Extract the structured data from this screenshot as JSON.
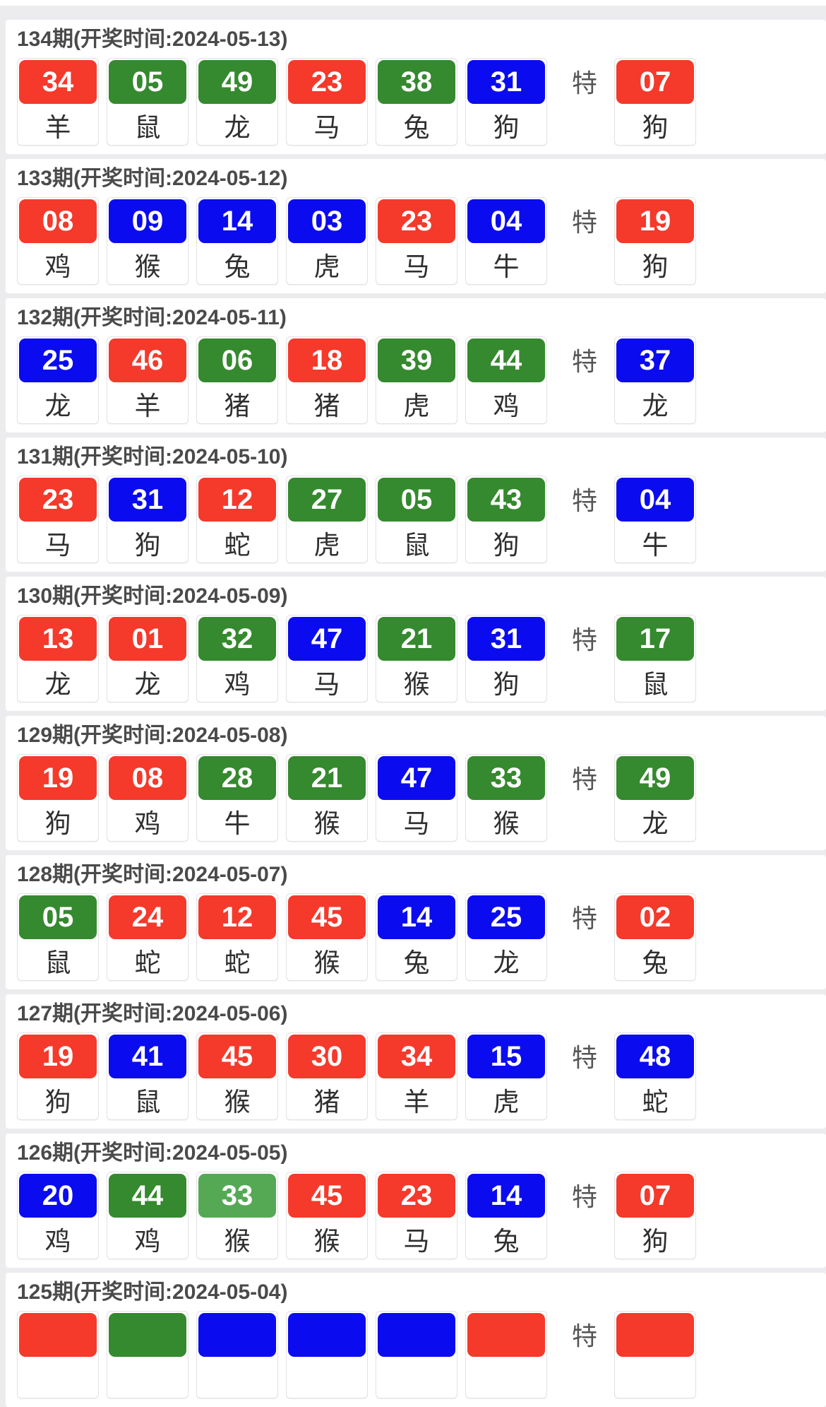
{
  "special_label": "特",
  "colors": {
    "red": "#f5392b",
    "green": "#35892e",
    "green_light": "#55a955",
    "blue": "#0b0bef"
  },
  "draws": [
    {
      "title": "134期(开奖时间:2024-05-13)",
      "numbers": [
        {
          "value": "34",
          "color": "red",
          "zodiac": "羊"
        },
        {
          "value": "05",
          "color": "green",
          "zodiac": "鼠"
        },
        {
          "value": "49",
          "color": "green",
          "zodiac": "龙"
        },
        {
          "value": "23",
          "color": "red",
          "zodiac": "马"
        },
        {
          "value": "38",
          "color": "green",
          "zodiac": "兔"
        },
        {
          "value": "31",
          "color": "blue",
          "zodiac": "狗"
        }
      ],
      "special": {
        "value": "07",
        "color": "red",
        "zodiac": "狗"
      }
    },
    {
      "title": "133期(开奖时间:2024-05-12)",
      "numbers": [
        {
          "value": "08",
          "color": "red",
          "zodiac": "鸡"
        },
        {
          "value": "09",
          "color": "blue",
          "zodiac": "猴"
        },
        {
          "value": "14",
          "color": "blue",
          "zodiac": "兔"
        },
        {
          "value": "03",
          "color": "blue",
          "zodiac": "虎"
        },
        {
          "value": "23",
          "color": "red",
          "zodiac": "马"
        },
        {
          "value": "04",
          "color": "blue",
          "zodiac": "牛"
        }
      ],
      "special": {
        "value": "19",
        "color": "red",
        "zodiac": "狗"
      }
    },
    {
      "title": "132期(开奖时间:2024-05-11)",
      "numbers": [
        {
          "value": "25",
          "color": "blue",
          "zodiac": "龙"
        },
        {
          "value": "46",
          "color": "red",
          "zodiac": "羊"
        },
        {
          "value": "06",
          "color": "green",
          "zodiac": "猪"
        },
        {
          "value": "18",
          "color": "red",
          "zodiac": "猪"
        },
        {
          "value": "39",
          "color": "green",
          "zodiac": "虎"
        },
        {
          "value": "44",
          "color": "green",
          "zodiac": "鸡"
        }
      ],
      "special": {
        "value": "37",
        "color": "blue",
        "zodiac": "龙"
      }
    },
    {
      "title": "131期(开奖时间:2024-05-10)",
      "numbers": [
        {
          "value": "23",
          "color": "red",
          "zodiac": "马"
        },
        {
          "value": "31",
          "color": "blue",
          "zodiac": "狗"
        },
        {
          "value": "12",
          "color": "red",
          "zodiac": "蛇"
        },
        {
          "value": "27",
          "color": "green",
          "zodiac": "虎"
        },
        {
          "value": "05",
          "color": "green",
          "zodiac": "鼠"
        },
        {
          "value": "43",
          "color": "green",
          "zodiac": "狗"
        }
      ],
      "special": {
        "value": "04",
        "color": "blue",
        "zodiac": "牛"
      }
    },
    {
      "title": "130期(开奖时间:2024-05-09)",
      "numbers": [
        {
          "value": "13",
          "color": "red",
          "zodiac": "龙"
        },
        {
          "value": "01",
          "color": "red",
          "zodiac": "龙"
        },
        {
          "value": "32",
          "color": "green",
          "zodiac": "鸡"
        },
        {
          "value": "47",
          "color": "blue",
          "zodiac": "马"
        },
        {
          "value": "21",
          "color": "green",
          "zodiac": "猴"
        },
        {
          "value": "31",
          "color": "blue",
          "zodiac": "狗"
        }
      ],
      "special": {
        "value": "17",
        "color": "green",
        "zodiac": "鼠"
      }
    },
    {
      "title": "129期(开奖时间:2024-05-08)",
      "numbers": [
        {
          "value": "19",
          "color": "red",
          "zodiac": "狗"
        },
        {
          "value": "08",
          "color": "red",
          "zodiac": "鸡"
        },
        {
          "value": "28",
          "color": "green",
          "zodiac": "牛"
        },
        {
          "value": "21",
          "color": "green",
          "zodiac": "猴"
        },
        {
          "value": "47",
          "color": "blue",
          "zodiac": "马"
        },
        {
          "value": "33",
          "color": "green",
          "zodiac": "猴"
        }
      ],
      "special": {
        "value": "49",
        "color": "green",
        "zodiac": "龙"
      }
    },
    {
      "title": "128期(开奖时间:2024-05-07)",
      "numbers": [
        {
          "value": "05",
          "color": "green",
          "zodiac": "鼠"
        },
        {
          "value": "24",
          "color": "red",
          "zodiac": "蛇"
        },
        {
          "value": "12",
          "color": "red",
          "zodiac": "蛇"
        },
        {
          "value": "45",
          "color": "red",
          "zodiac": "猴"
        },
        {
          "value": "14",
          "color": "blue",
          "zodiac": "兔"
        },
        {
          "value": "25",
          "color": "blue",
          "zodiac": "龙"
        }
      ],
      "special": {
        "value": "02",
        "color": "red",
        "zodiac": "兔"
      }
    },
    {
      "title": "127期(开奖时间:2024-05-06)",
      "numbers": [
        {
          "value": "19",
          "color": "red",
          "zodiac": "狗"
        },
        {
          "value": "41",
          "color": "blue",
          "zodiac": "鼠"
        },
        {
          "value": "45",
          "color": "red",
          "zodiac": "猴"
        },
        {
          "value": "30",
          "color": "red",
          "zodiac": "猪"
        },
        {
          "value": "34",
          "color": "red",
          "zodiac": "羊"
        },
        {
          "value": "15",
          "color": "blue",
          "zodiac": "虎"
        }
      ],
      "special": {
        "value": "48",
        "color": "blue",
        "zodiac": "蛇"
      }
    },
    {
      "title": "126期(开奖时间:2024-05-05)",
      "numbers": [
        {
          "value": "20",
          "color": "blue",
          "zodiac": "鸡"
        },
        {
          "value": "44",
          "color": "green",
          "zodiac": "鸡"
        },
        {
          "value": "33",
          "color": "green_light",
          "zodiac": "猴"
        },
        {
          "value": "45",
          "color": "red",
          "zodiac": "猴"
        },
        {
          "value": "23",
          "color": "red",
          "zodiac": "马"
        },
        {
          "value": "14",
          "color": "blue",
          "zodiac": "兔"
        }
      ],
      "special": {
        "value": "07",
        "color": "red",
        "zodiac": "狗"
      }
    },
    {
      "title": "125期(开奖时间:2024-05-04)",
      "numbers": [
        {
          "value": "",
          "color": "red",
          "zodiac": ""
        },
        {
          "value": "",
          "color": "green",
          "zodiac": ""
        },
        {
          "value": "",
          "color": "blue",
          "zodiac": ""
        },
        {
          "value": "",
          "color": "blue",
          "zodiac": ""
        },
        {
          "value": "",
          "color": "blue",
          "zodiac": ""
        },
        {
          "value": "",
          "color": "red",
          "zodiac": ""
        }
      ],
      "special": {
        "value": "",
        "color": "red",
        "zodiac": ""
      }
    }
  ]
}
